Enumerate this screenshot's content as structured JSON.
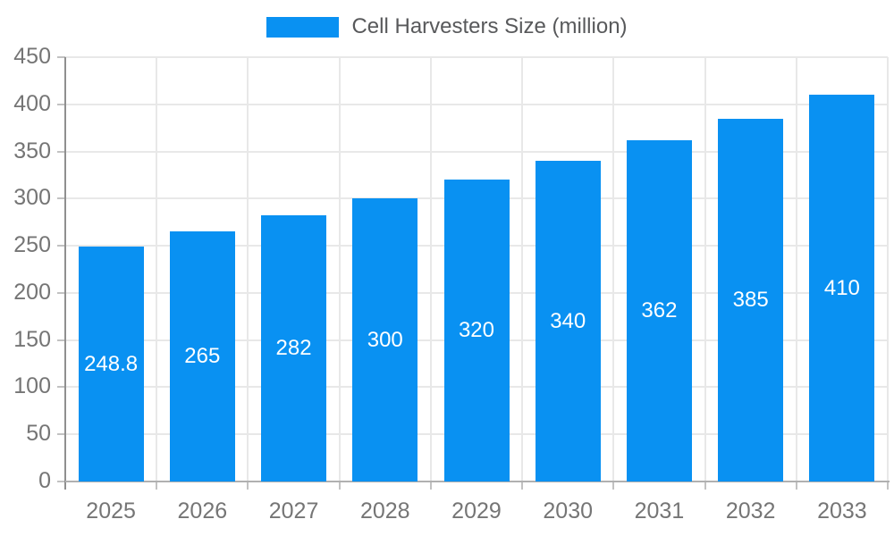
{
  "legend": {
    "label": "Cell Harvesters Size (million)"
  },
  "chart_data": {
    "type": "bar",
    "title": "Cell Harvesters Size (million)",
    "categories": [
      "2025",
      "2026",
      "2027",
      "2028",
      "2029",
      "2030",
      "2031",
      "2032",
      "2033"
    ],
    "values": [
      248.8,
      265,
      282,
      300,
      320,
      340,
      362,
      385,
      410
    ],
    "value_labels": [
      "248.8",
      "265",
      "282",
      "300",
      "320",
      "340",
      "362",
      "385",
      "410"
    ],
    "xlabel": "",
    "ylabel": "",
    "ylim": [
      0,
      450
    ],
    "ytick_step": 50,
    "ytick_labels": [
      "0",
      "50",
      "100",
      "150",
      "200",
      "250",
      "300",
      "350",
      "400",
      "450"
    ],
    "grid": true,
    "legend_position": "top",
    "value_label_position": "center-of-bar",
    "colors": {
      "bar": "#0991f2",
      "grid": "#e8e8e8",
      "y_axis_line": "#8f8f8f",
      "x_axis_line": "#b0b0b0",
      "tick": "#c2c2c2",
      "tick_label": "#757575",
      "legend_text": "#58595b",
      "value_label": "#ffffff",
      "background": "#ffffff"
    }
  }
}
